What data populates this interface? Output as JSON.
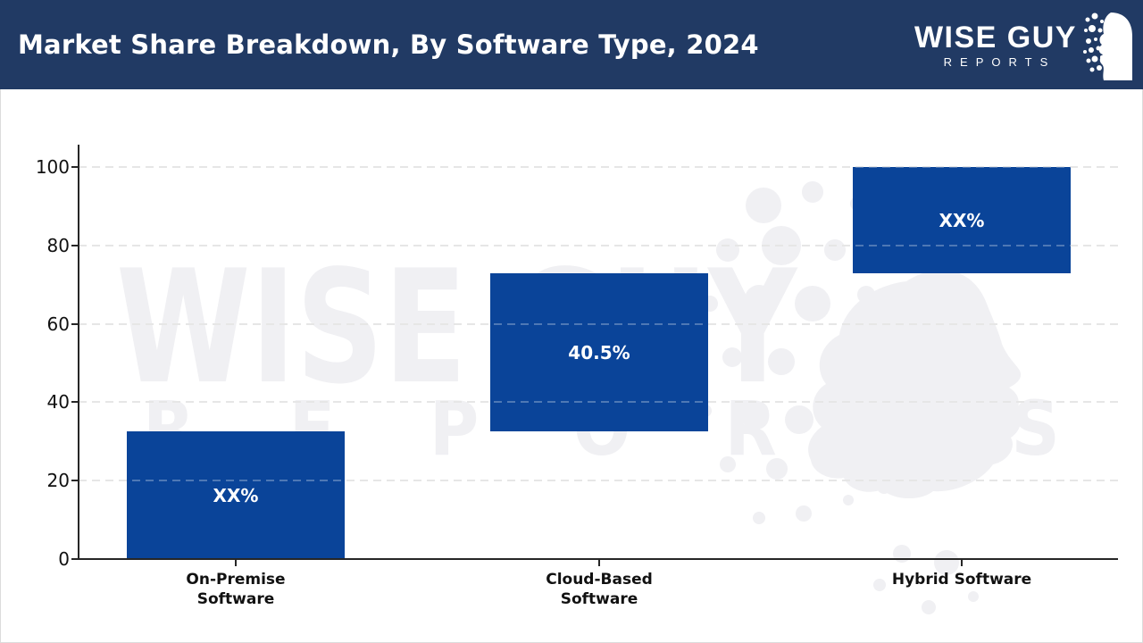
{
  "page": {
    "background": "#ffffff",
    "border_color": "#dcdcdc"
  },
  "header": {
    "background_color": "#213a64",
    "title": "Market Share Breakdown, By Software Type, 2024",
    "logo_line1": "WISE GUY",
    "logo_line2": "REPORTS"
  },
  "watermark": {
    "line1": "WISE GUY",
    "line2": "R E P O R T S",
    "color": "#f0f0f3"
  },
  "chart_data": {
    "type": "bar",
    "variant": "floating-segment-waterfall",
    "title": "Market Share Breakdown, By Software Type, 2024",
    "categories": [
      "On-Premise\nSoftware",
      "Cloud-Based\nSoftware",
      "Hybrid Software"
    ],
    "segments": [
      {
        "category": "On-Premise Software",
        "start": 0,
        "end": 32.5,
        "value_label": "XX%"
      },
      {
        "category": "Cloud-Based Software",
        "start": 32.5,
        "end": 73,
        "value_label": "40.5%"
      },
      {
        "category": "Hybrid Software",
        "start": 73,
        "end": 100,
        "value_label": "XX%"
      }
    ],
    "yticks": [
      0,
      20,
      40,
      60,
      80,
      100
    ],
    "ylim": [
      0,
      105.5
    ],
    "xlabel": "",
    "ylabel": "",
    "bar_color": "#0a4499",
    "bar_label_color": "#ffffff",
    "axis_color": "#262626",
    "tick_label_color": "#111111",
    "grid": {
      "axis": "y",
      "style": "dashed",
      "color": "#dcdcdc"
    },
    "legend": "none"
  }
}
